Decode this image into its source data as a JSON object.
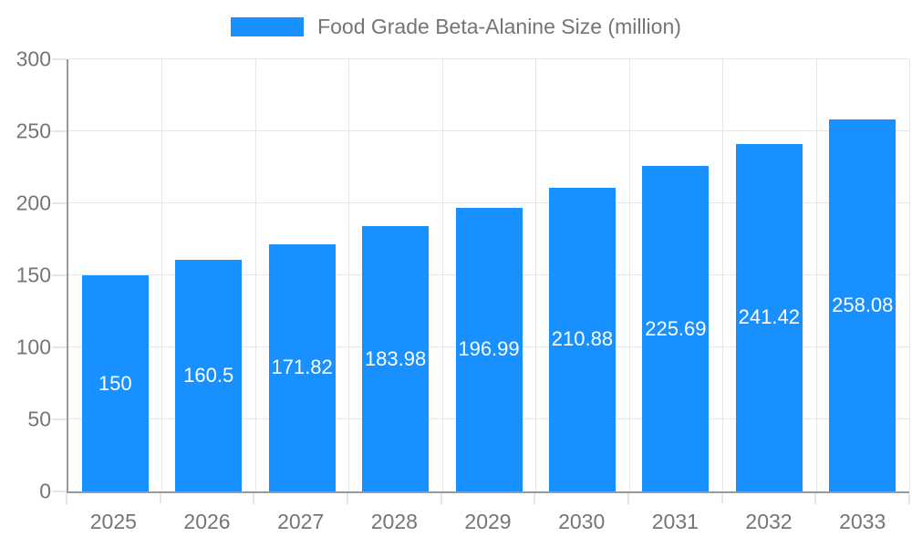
{
  "colors": {
    "bar": "#1890ff",
    "axis": "#999999",
    "grid": "#e6e6e6",
    "tick": "#cccccc",
    "label": "#757575",
    "value_label": "#ffffff",
    "background": "#ffffff"
  },
  "chart_data": {
    "type": "bar",
    "title": "",
    "legend": "Food Grade Beta-Alanine Size (million)",
    "legend_position": "top",
    "categories": [
      "2025",
      "2026",
      "2027",
      "2028",
      "2029",
      "2030",
      "2031",
      "2032",
      "2033"
    ],
    "values": [
      150,
      160.5,
      171.82,
      183.98,
      196.99,
      210.88,
      225.69,
      241.42,
      258.08
    ],
    "xlabel": "",
    "ylabel": "",
    "ylim": [
      0,
      300
    ],
    "yticks": [
      0,
      50,
      100,
      150,
      200,
      250,
      300
    ],
    "grid": true,
    "value_labels": "inside-center"
  }
}
